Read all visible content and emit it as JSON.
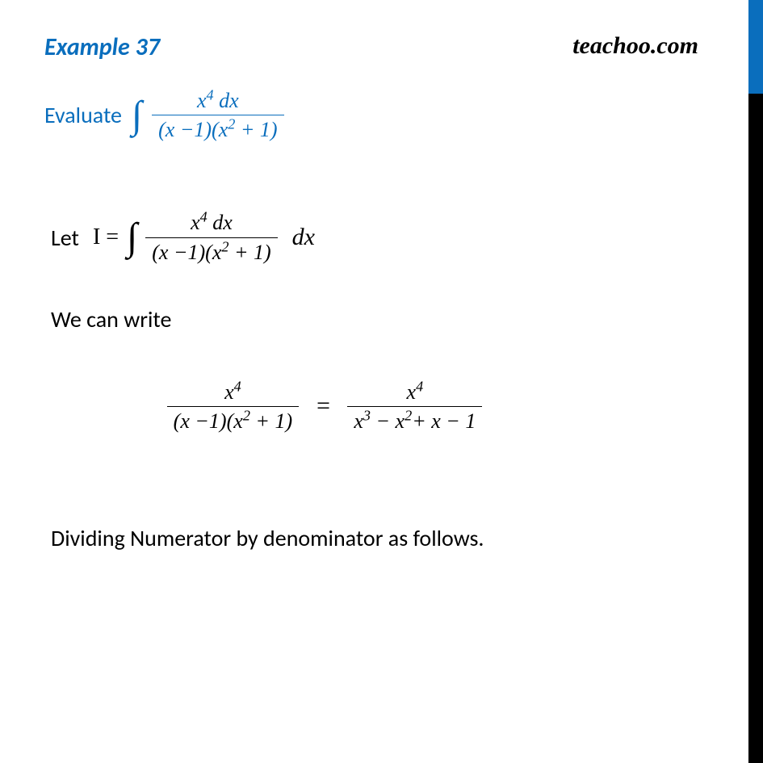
{
  "header": {
    "example_title": "Example 37",
    "brand": "teachoo.com"
  },
  "problem": {
    "evaluate_label": "Evaluate",
    "integral_symbol": "∫",
    "fraction1_num": "x⁴ dx",
    "fraction1_den": "(x −1)(x² + 1)"
  },
  "solution": {
    "let_label": "Let",
    "i_equals": "I =",
    "integral_symbol": "∫",
    "fraction2_num": "x⁴ dx",
    "fraction2_den": "(x −1)(x² + 1)",
    "dx_trailing": "dx",
    "we_can_write": "We can write",
    "fraction3_num": "x⁴",
    "fraction3_den": "(x −1)(x² + 1)",
    "equals": "=",
    "fraction4_num": "x⁴",
    "fraction4_den": "x³ − x²+ x − 1",
    "dividing_text": "Dividing Numerator by denominator as follows."
  },
  "colors": {
    "blue": "#0a6ebd",
    "black": "#000000",
    "white": "#ffffff"
  }
}
